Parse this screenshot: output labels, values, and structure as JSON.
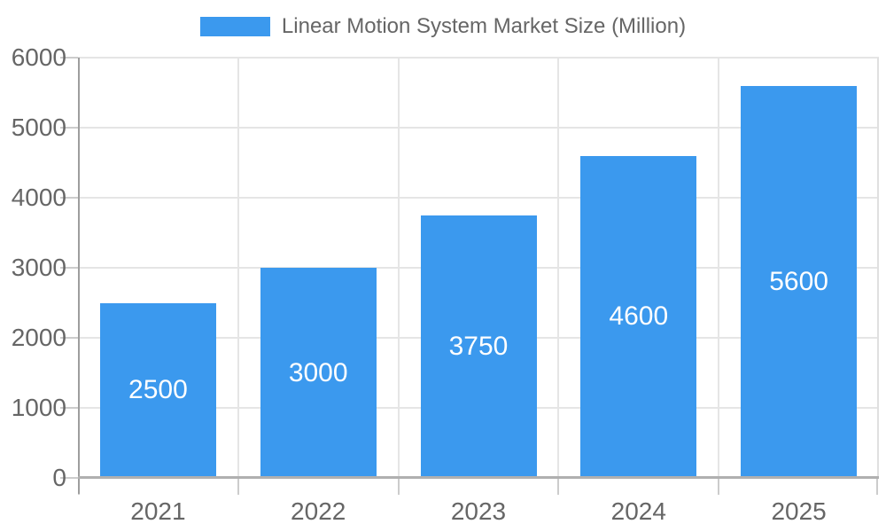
{
  "chart_data": {
    "type": "bar",
    "title": "Linear Motion System Market Size (Million)",
    "legend": {
      "label": "Linear Motion System Market Size (Million)",
      "position": "top"
    },
    "categories": [
      "2021",
      "2022",
      "2023",
      "2024",
      "2025"
    ],
    "values": [
      2500,
      3000,
      3750,
      4600,
      5600
    ],
    "series": [
      {
        "name": "Linear Motion System Market Size (Million)",
        "values": [
          2500,
          3000,
          3750,
          4600,
          5600
        ]
      }
    ],
    "xlabel": "",
    "ylabel": "",
    "ylim": [
      0,
      6000
    ],
    "yticks": [
      0,
      1000,
      2000,
      3000,
      4000,
      5000,
      6000
    ],
    "grid": true,
    "data_labels_shown": true,
    "colors": {
      "bar": "#3b99ee",
      "gridline": "#e5e5e5",
      "tick": "#cccccc",
      "y_axis_line": "#9e9e9e",
      "x_axis_line": "#b0b0b0",
      "plot_right_border": "#e0e0e0",
      "axis_label_text": "#666666",
      "legend_text": "#666666",
      "data_label_text": "#ffffff",
      "background": "#ffffff"
    }
  }
}
